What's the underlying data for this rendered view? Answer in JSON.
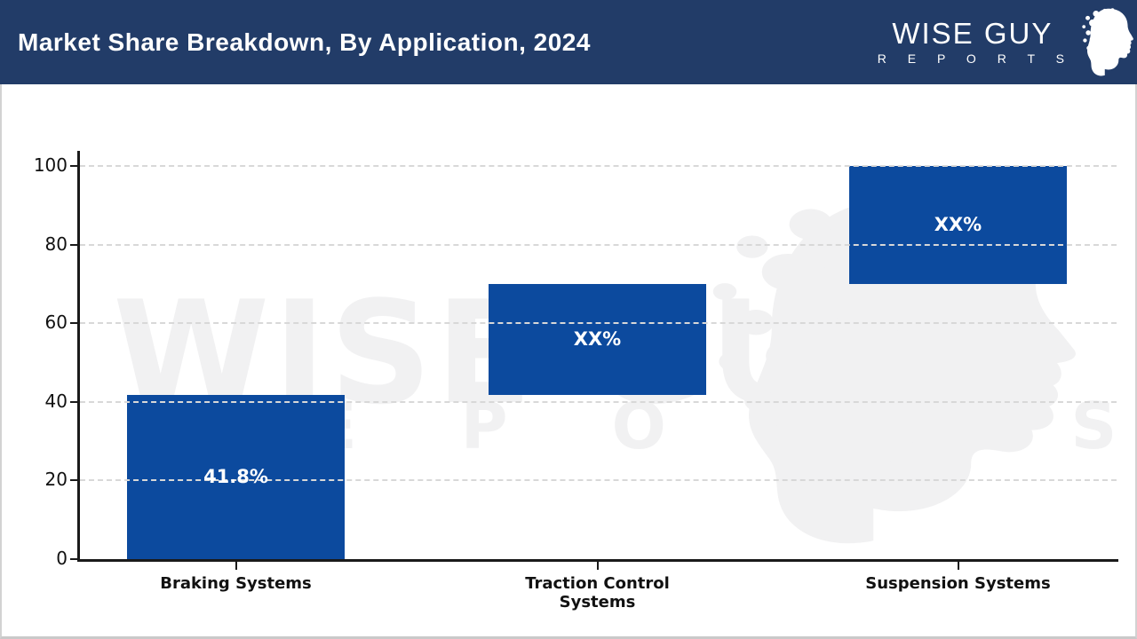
{
  "header": {
    "title": "Market Share Breakdown, By Application, 2024",
    "logo": {
      "line1": "WISE GUY",
      "line2": "R E P O R T S"
    }
  },
  "watermark": {
    "line1": "WISE GUY",
    "line2": "R E P O R T S"
  },
  "colors": {
    "header_bg": "#223c68",
    "bar": "#0c4a9e",
    "grid": "#d8d8d8",
    "axis": "#1a1a1a",
    "text": "#111111",
    "bar_label": "#ffffff",
    "watermark": "#f1f1f2"
  },
  "chart_data": {
    "type": "bar",
    "subtype": "floating-segment-waterfall",
    "title": "Market Share Breakdown, By Application, 2024",
    "categories": [
      "Braking Systems",
      "Traction Control Systems",
      "Suspension Systems"
    ],
    "segments": [
      {
        "category": "Braking Systems",
        "start": 0,
        "end": 41.8,
        "label": "41.8%"
      },
      {
        "category": "Traction Control Systems",
        "start": 41.8,
        "end": 70,
        "label": "XX%"
      },
      {
        "category": "Suspension Systems",
        "start": 70,
        "end": 100,
        "label": "XX%"
      }
    ],
    "ylim": [
      0,
      100
    ],
    "yticks": [
      0,
      20,
      40,
      60,
      80,
      100
    ],
    "ytick_labels": [
      "0",
      "20",
      "40",
      "60",
      "80",
      "100"
    ],
    "grid": "horizontal-dashed",
    "legend": "none",
    "bar_color": "#0c4a9e",
    "label_color": "#ffffff"
  }
}
